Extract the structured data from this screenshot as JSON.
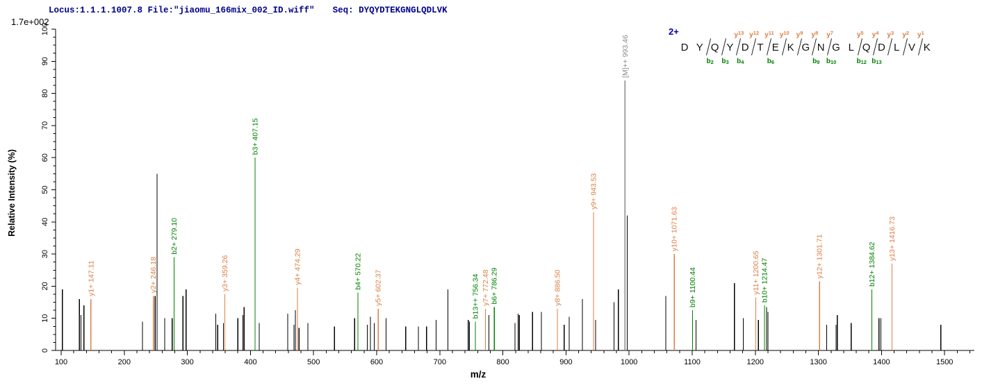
{
  "header": {
    "locus_file": "Locus:1.1.1.1007.8 File:\"jiaomu_166mix_002_ID.wiff\"",
    "seq_label": "Seq:",
    "sequence": "DYQYDTEKGNGLQDLVK"
  },
  "sequence_panel": {
    "charge_label": "2+",
    "residues": [
      "D",
      "Y",
      "Q",
      "Y",
      "D",
      "T",
      "E",
      "K",
      "G",
      "N",
      "G",
      "L",
      "Q",
      "D",
      "L",
      "V",
      "K"
    ],
    "y_color": "#dd7f45",
    "b_color": "#008000",
    "markers": [
      {
        "after": 2,
        "y": null,
        "b": "b2"
      },
      {
        "after": 3,
        "y": null,
        "b": "b3"
      },
      {
        "after": 4,
        "y": "y13",
        "b": "b4"
      },
      {
        "after": 5,
        "y": "y12",
        "b": null
      },
      {
        "after": 6,
        "y": "y11",
        "b": "b6"
      },
      {
        "after": 7,
        "y": "y10",
        "b": null
      },
      {
        "after": 8,
        "y": "y9",
        "b": null
      },
      {
        "after": 9,
        "y": "y8",
        "b": "b9"
      },
      {
        "after": 10,
        "y": "y7",
        "b": "b10"
      },
      {
        "after": 12,
        "y": "y5",
        "b": "b12"
      },
      {
        "after": 13,
        "y": "y4",
        "b": "b13"
      },
      {
        "after": 14,
        "y": "y3",
        "b": null
      },
      {
        "after": 15,
        "y": "y2",
        "b": null
      },
      {
        "after": 16,
        "y": "y1",
        "b": null
      }
    ]
  },
  "chart_data": {
    "type": "bar",
    "subtype": "ms2-mass-spectrum",
    "title": "",
    "xlabel": "m/z",
    "ylabel": "Relative  Intensity (%)",
    "base_peak_label": "1.7e+002",
    "xlim": [
      100,
      1500
    ],
    "ylim": [
      0,
      100
    ],
    "x_ticks": [
      100,
      200,
      300,
      400,
      500,
      600,
      700,
      800,
      900,
      1000,
      1100,
      1200,
      1300,
      1400,
      1500
    ],
    "x_minor_step": 20,
    "y_ticks": [
      0,
      10,
      20,
      30,
      40,
      50,
      60,
      70,
      80,
      90,
      100
    ],
    "y_minor_step": 2.5,
    "grid": false,
    "legend": false,
    "colors": {
      "peak": "#000000",
      "y_ion": "#dd7f45",
      "b_ion": "#008000",
      "precursor": "#8a8a8a"
    },
    "peaks": [
      {
        "mz": 102,
        "i": 19
      },
      {
        "mz": 129,
        "i": 16
      },
      {
        "mz": 131.5,
        "i": 11
      },
      {
        "mz": 136,
        "i": 14
      },
      {
        "mz": 147.11,
        "i": 16,
        "ion": "y",
        "label": "y1+ 147.11"
      },
      {
        "mz": 229,
        "i": 9
      },
      {
        "mz": 246.18,
        "i": 17,
        "ion": "y",
        "label": "y2+ 246.18"
      },
      {
        "mz": 249,
        "i": 17
      },
      {
        "mz": 252,
        "i": 55
      },
      {
        "mz": 264,
        "i": 10
      },
      {
        "mz": 276,
        "i": 10
      },
      {
        "mz": 279.1,
        "i": 29,
        "ion": "b",
        "label": "b2+ 279.10"
      },
      {
        "mz": 293,
        "i": 17
      },
      {
        "mz": 298,
        "i": 19
      },
      {
        "mz": 345,
        "i": 11.5
      },
      {
        "mz": 348,
        "i": 8
      },
      {
        "mz": 357,
        "i": 8.5
      },
      {
        "mz": 359.26,
        "i": 17.5,
        "ion": "y",
        "label": "y3+ 359.26"
      },
      {
        "mz": 380,
        "i": 10
      },
      {
        "mz": 388,
        "i": 11
      },
      {
        "mz": 390,
        "i": 13.5
      },
      {
        "mz": 407.15,
        "i": 60,
        "ion": "b",
        "label": "b3+ 407.15"
      },
      {
        "mz": 414,
        "i": 8.5
      },
      {
        "mz": 459,
        "i": 11.5
      },
      {
        "mz": 469,
        "i": 8
      },
      {
        "mz": 471,
        "i": 12.5
      },
      {
        "mz": 474.29,
        "i": 19.5,
        "ion": "y",
        "label": "y4+ 474.29"
      },
      {
        "mz": 477,
        "i": 7
      },
      {
        "mz": 491,
        "i": 8.5
      },
      {
        "mz": 533,
        "i": 7.5
      },
      {
        "mz": 565,
        "i": 10
      },
      {
        "mz": 570.22,
        "i": 18,
        "ion": "b",
        "label": "b4+ 570.22"
      },
      {
        "mz": 585,
        "i": 8
      },
      {
        "mz": 590,
        "i": 10.5
      },
      {
        "mz": 596,
        "i": 8.5
      },
      {
        "mz": 602.37,
        "i": 13,
        "ion": "y",
        "label": "y5+ 602.37"
      },
      {
        "mz": 615,
        "i": 10
      },
      {
        "mz": 646,
        "i": 7.5
      },
      {
        "mz": 666,
        "i": 7.5
      },
      {
        "mz": 679,
        "i": 7.5
      },
      {
        "mz": 694,
        "i": 9.5
      },
      {
        "mz": 713,
        "i": 19
      },
      {
        "mz": 745,
        "i": 9.5
      },
      {
        "mz": 747,
        "i": 9
      },
      {
        "mz": 756.34,
        "i": 9,
        "ion": "b",
        "label": "b13++ 756.34"
      },
      {
        "mz": 772.48,
        "i": 13,
        "ion": "y",
        "label": "y7+ 772.48"
      },
      {
        "mz": 778,
        "i": 11
      },
      {
        "mz": 786.29,
        "i": 13.5,
        "ion": "b",
        "label": "b6+ 786.29"
      },
      {
        "mz": 819,
        "i": 8.5
      },
      {
        "mz": 824,
        "i": 11.5
      },
      {
        "mz": 826,
        "i": 11
      },
      {
        "mz": 847,
        "i": 12
      },
      {
        "mz": 861,
        "i": 12
      },
      {
        "mz": 886.5,
        "i": 13,
        "ion": "y",
        "label": "y8+ 886.50"
      },
      {
        "mz": 897,
        "i": 8
      },
      {
        "mz": 905,
        "i": 10.5
      },
      {
        "mz": 926,
        "i": 16
      },
      {
        "mz": 943.53,
        "i": 43,
        "ion": "y",
        "label": "y9+ 943.53"
      },
      {
        "mz": 947,
        "i": 9.5
      },
      {
        "mz": 976,
        "i": 15
      },
      {
        "mz": 983,
        "i": 19
      },
      {
        "mz": 993.46,
        "i": 84,
        "ion": "M",
        "label": "[M]++ 993.46"
      },
      {
        "mz": 997,
        "i": 42
      },
      {
        "mz": 1058,
        "i": 17
      },
      {
        "mz": 1071.63,
        "i": 30,
        "ion": "y",
        "label": "y10+ 1071.63"
      },
      {
        "mz": 1100.44,
        "i": 12.5,
        "ion": "b",
        "label": "b9+ 1100.44"
      },
      {
        "mz": 1106,
        "i": 9.5
      },
      {
        "mz": 1167,
        "i": 21
      },
      {
        "mz": 1181,
        "i": 10
      },
      {
        "mz": 1200.65,
        "i": 16.5,
        "ion": "y",
        "label": "y11+ 1200.65"
      },
      {
        "mz": 1205,
        "i": 9.5
      },
      {
        "mz": 1214.47,
        "i": 14,
        "ion": "b",
        "label": "b10+ 1214.47"
      },
      {
        "mz": 1218,
        "i": 13.5
      },
      {
        "mz": 1220,
        "i": 12
      },
      {
        "mz": 1301.71,
        "i": 21.5,
        "ion": "y",
        "label": "y12+ 1301.71"
      },
      {
        "mz": 1313,
        "i": 8
      },
      {
        "mz": 1328,
        "i": 8
      },
      {
        "mz": 1330,
        "i": 11
      },
      {
        "mz": 1352,
        "i": 8.5
      },
      {
        "mz": 1384.62,
        "i": 19,
        "ion": "b",
        "label": "b12+ 1384.62"
      },
      {
        "mz": 1396,
        "i": 10
      },
      {
        "mz": 1399,
        "i": 10
      },
      {
        "mz": 1416.73,
        "i": 27,
        "ion": "y",
        "label": "y13+ 1416.73"
      },
      {
        "mz": 1494,
        "i": 8
      }
    ]
  }
}
